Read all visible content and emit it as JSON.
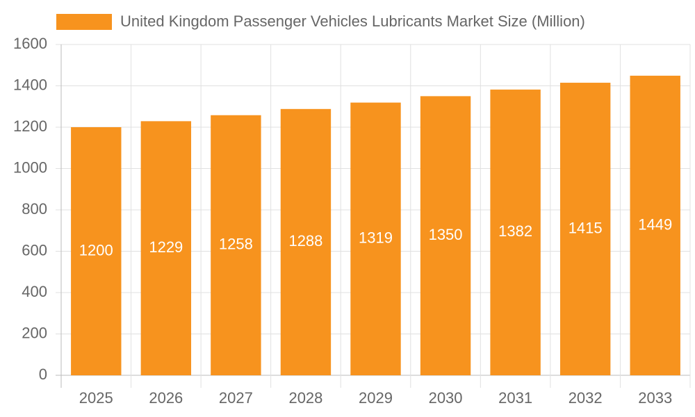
{
  "chart_data": {
    "type": "bar",
    "categories": [
      "2025",
      "2026",
      "2027",
      "2028",
      "2029",
      "2030",
      "2031",
      "2032",
      "2033"
    ],
    "series": [
      {
        "name": "United Kingdom Passenger Vehicles Lubricants Market Size (Million)",
        "color": "#f7931e",
        "values": [
          1200,
          1229,
          1258,
          1288,
          1319,
          1350,
          1382,
          1415,
          1449
        ]
      }
    ],
    "ylim": [
      0,
      1600
    ],
    "yticks": [
      0,
      200,
      400,
      600,
      800,
      1000,
      1200,
      1400,
      1600
    ],
    "grid": true,
    "legend": "top",
    "value_label_color": "#ffffff"
  }
}
